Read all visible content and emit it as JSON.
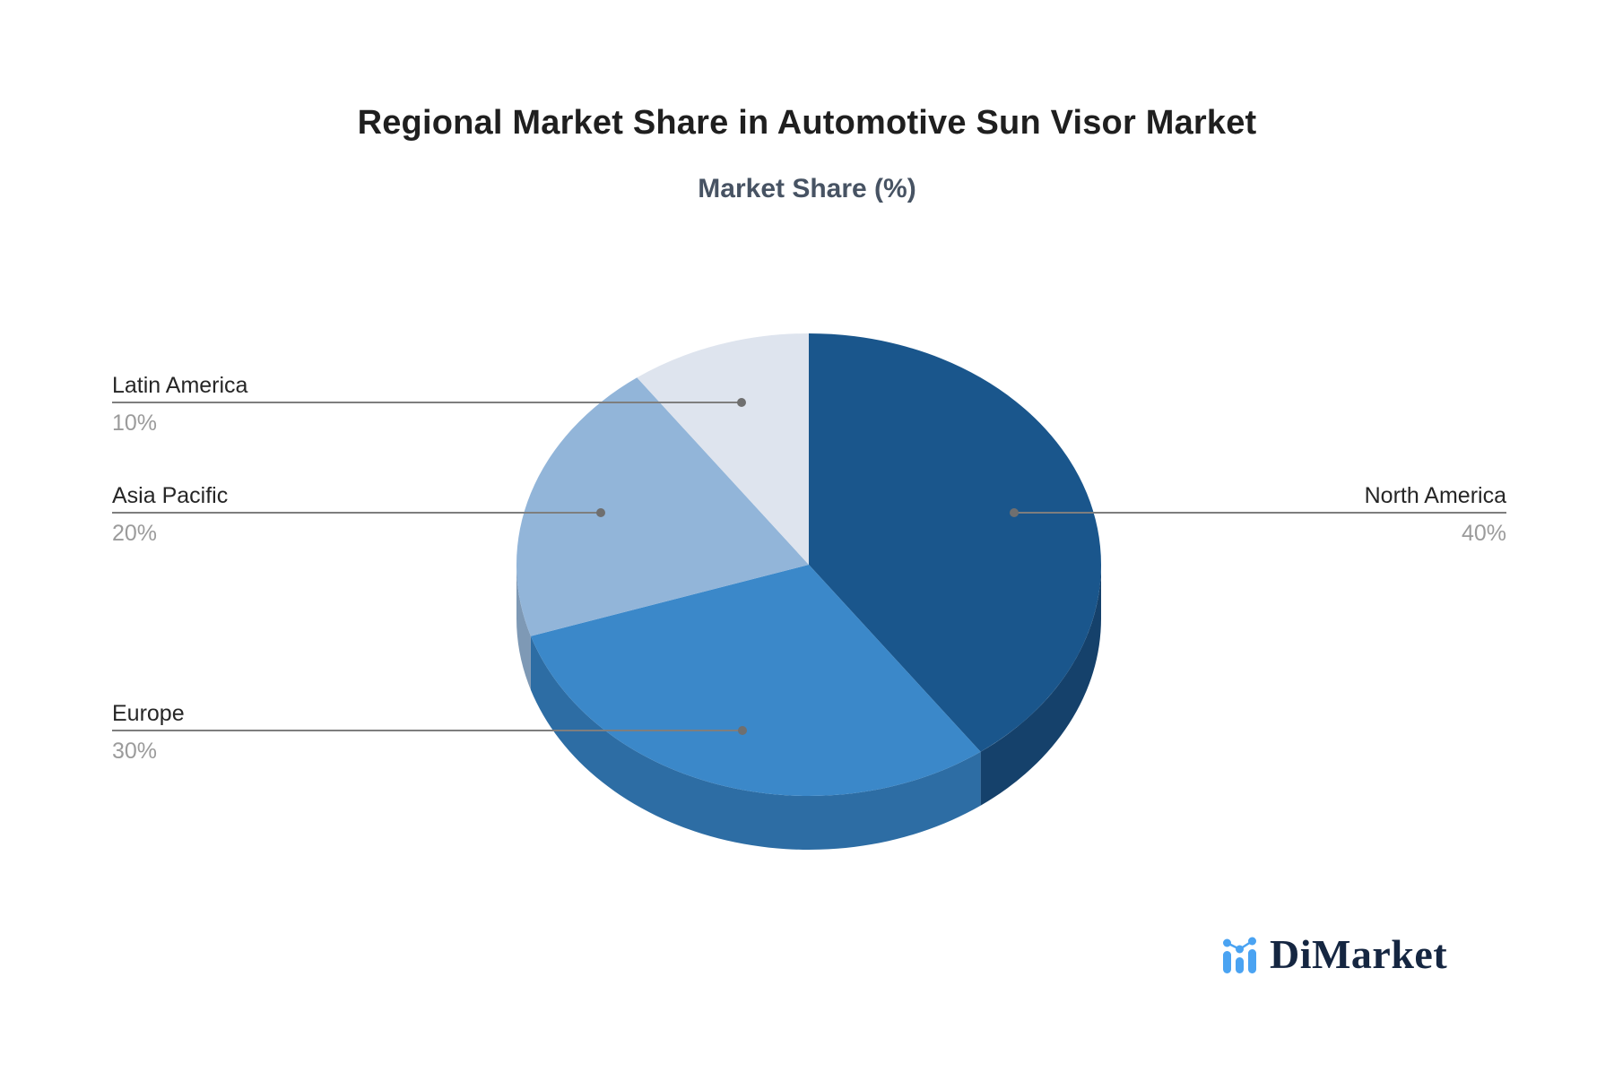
{
  "chart_data": {
    "type": "pie",
    "title": "Regional Market Share in Automotive Sun Visor Market",
    "subtitle": "Market Share (%)",
    "legend_position": "none",
    "labels_layout": "callout-lines",
    "start_angle_deg": 0,
    "direction": "clockwise",
    "effect": "3d-extruded",
    "slices": [
      {
        "label": "North America",
        "value": 40,
        "pct_label": "40%",
        "color": "#1A568C",
        "side_color": "#15416B"
      },
      {
        "label": "Europe",
        "value": 30,
        "pct_label": "30%",
        "color": "#3B88C9",
        "side_color": "#2D6DA4"
      },
      {
        "label": "Asia Pacific",
        "value": 20,
        "pct_label": "20%",
        "color": "#92B5D9",
        "side_color": "#7E99B5"
      },
      {
        "label": "Latin America",
        "value": 10,
        "pct_label": "10%",
        "color": "#DEE4EE",
        "side_color": "#C9D2DF"
      }
    ]
  },
  "branding": {
    "logo_text": "DiMarket",
    "logo_icon": "bar-chart-logo-icon",
    "logo_icon_color": "#4AA3F2",
    "logo_text_color": "#152641"
  },
  "style": {
    "connector_color": "#7E7E7E",
    "dot_color": "#6F6F6F",
    "label_color": "#262626",
    "pct_color": "#9B9B9B",
    "title_color": "#1F1F1F",
    "subtitle_color": "#475363",
    "background": "#FFFFFF"
  }
}
